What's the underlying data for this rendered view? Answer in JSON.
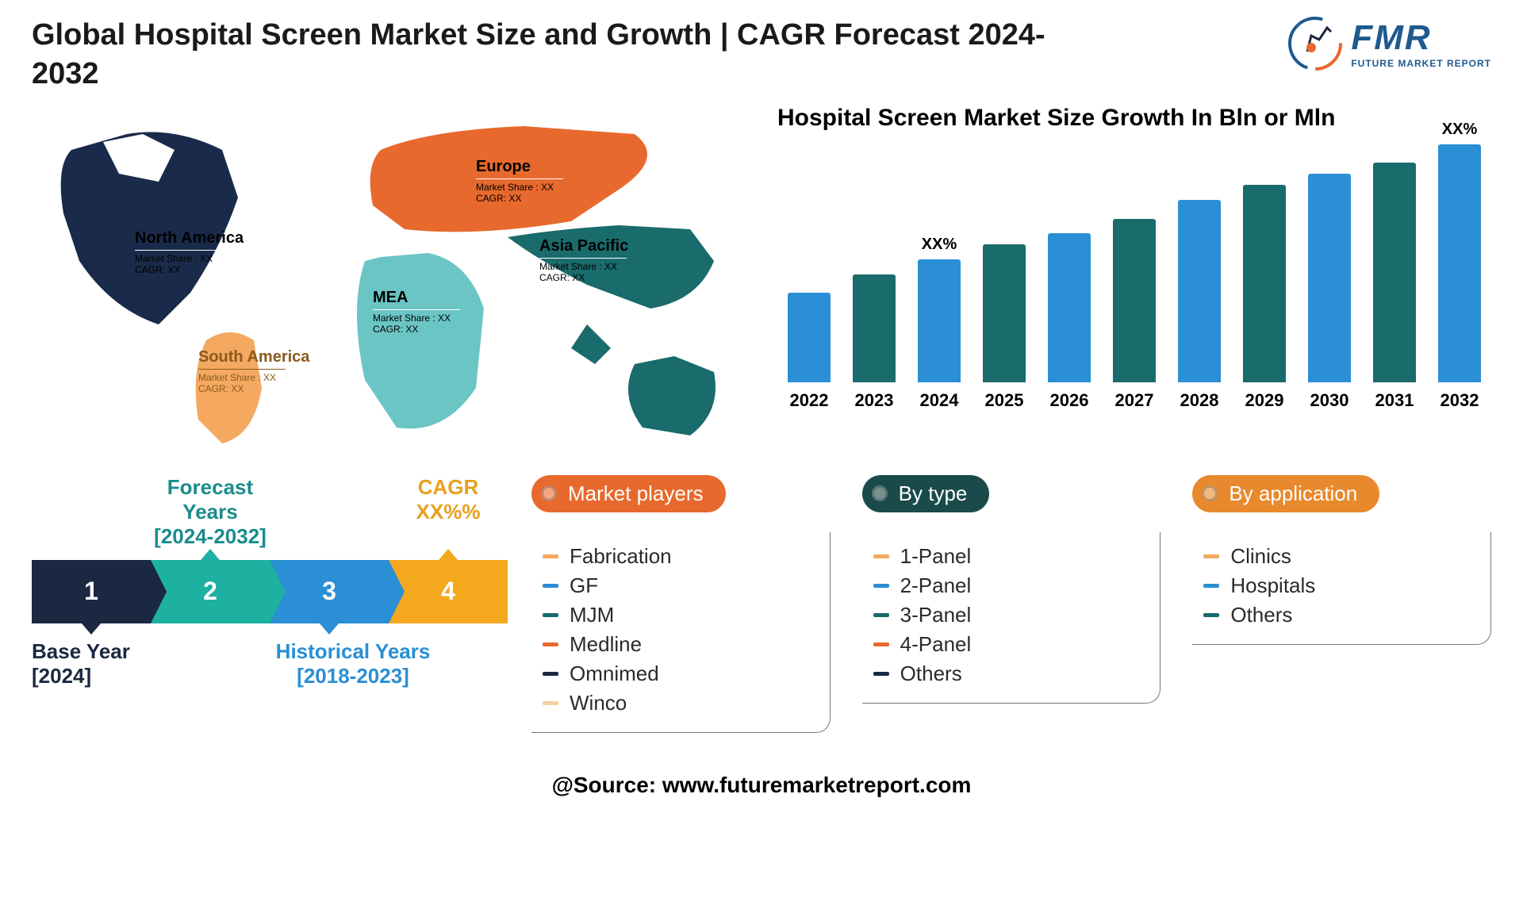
{
  "title": "Global Hospital Screen Market Size and Growth | CAGR Forecast 2024-2032",
  "logo": {
    "brand": "FMR",
    "subtitle": "FUTURE MARKET REPORT"
  },
  "map": {
    "regions": [
      {
        "name": "North America",
        "share": "Market Share : XX",
        "cagr": "CAGR: XX",
        "color": "#1a2a4a"
      },
      {
        "name": "South America",
        "share": "Market Share : XX",
        "cagr": "CAGR: XX",
        "color": "#f4a860"
      },
      {
        "name": "Europe",
        "share": "Market Share : XX",
        "cagr": "CAGR: XX",
        "color": "#e8692d"
      },
      {
        "name": "MEA",
        "share": "Market Share : XX",
        "cagr": "CAGR: XX",
        "color": "#6bc5c5"
      },
      {
        "name": "Asia Pacific",
        "share": "Market Share : XX",
        "cagr": "CAGR: XX",
        "color": "#1a6b6b"
      }
    ]
  },
  "chart": {
    "title": "Hospital Screen Market Size Growth In Bln or Mln",
    "years": [
      "2022",
      "2023",
      "2024",
      "2025",
      "2026",
      "2027",
      "2028",
      "2029",
      "2030",
      "2031",
      "2032"
    ],
    "values": [
      120,
      145,
      165,
      185,
      200,
      220,
      245,
      265,
      280,
      295,
      320
    ],
    "colors": [
      "#2a8fd4",
      "#1a6b6b",
      "#2a8fd4",
      "#1a6b6b",
      "#2a8fd4",
      "#1a6b6b",
      "#2a8fd4",
      "#1a6b6b",
      "#2a8fd4",
      "#1a6b6b",
      "#2a8fd4"
    ],
    "annotations": {
      "2": "XX%",
      "10": "XX%"
    },
    "ymax": 320
  },
  "timeline": {
    "forecast_label": "Forecast Years",
    "forecast_range": "[2024-2032]",
    "cagr_label": "CAGR",
    "cagr_value": "XX%%",
    "base_label": "Base Year",
    "base_range": "[2024]",
    "hist_label": "Historical Years",
    "hist_range": "[2018-2023]",
    "segments": [
      {
        "num": "1",
        "color": "#1a2842"
      },
      {
        "num": "2",
        "color": "#1eb0a0"
      },
      {
        "num": "3",
        "color": "#2a8fd4"
      },
      {
        "num": "4",
        "color": "#f4a81d"
      }
    ]
  },
  "categories": [
    {
      "header": "Market players",
      "header_color": "#e8692d",
      "items": [
        {
          "label": "Fabrication",
          "color": "#f4a860"
        },
        {
          "label": "GF",
          "color": "#2a8fd4"
        },
        {
          "label": "MJM",
          "color": "#1a6b6b"
        },
        {
          "label": "Medline",
          "color": "#e8692d"
        },
        {
          "label": "Omnimed",
          "color": "#1a2842"
        },
        {
          "label": "Winco",
          "color": "#f4d0a0"
        }
      ]
    },
    {
      "header": "By type",
      "header_color": "#1a4a4a",
      "items": [
        {
          "label": "1-Panel",
          "color": "#f4a860"
        },
        {
          "label": "2-Panel",
          "color": "#2a8fd4"
        },
        {
          "label": "3-Panel",
          "color": "#1a6b6b"
        },
        {
          "label": "4-Panel",
          "color": "#e8692d"
        },
        {
          "label": "Others",
          "color": "#1a2842"
        }
      ]
    },
    {
      "header": "By application",
      "header_color": "#e8892d",
      "items": [
        {
          "label": "Clinics",
          "color": "#f4a860"
        },
        {
          "label": "Hospitals",
          "color": "#2a8fd4"
        },
        {
          "label": "Others",
          "color": "#1a6b6b"
        }
      ]
    }
  ],
  "source": "@Source: www.futuremarketreport.com"
}
